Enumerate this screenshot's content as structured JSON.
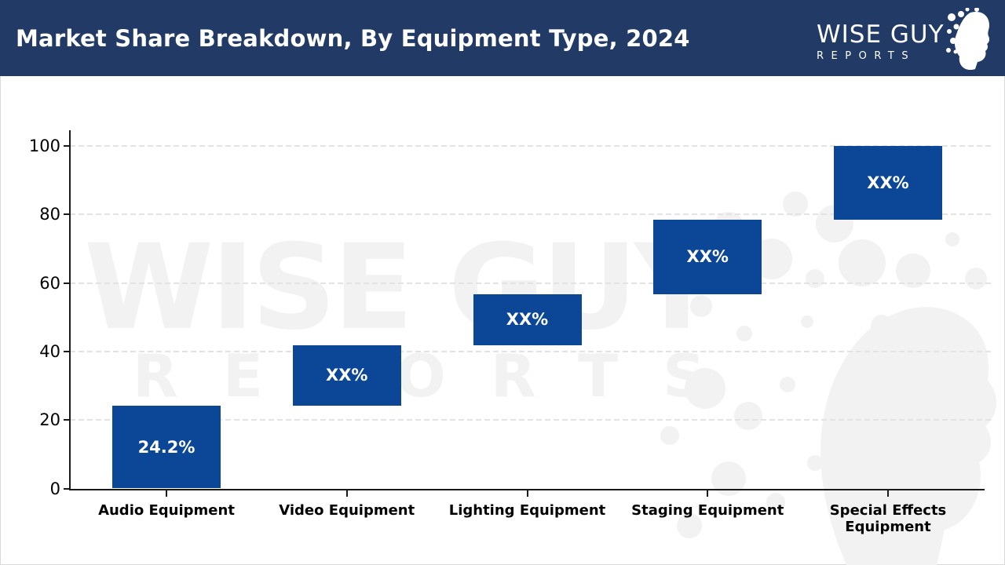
{
  "header": {
    "title": "Market Share Breakdown, By Equipment Type, 2024",
    "logo": {
      "name": "WISE GUY",
      "sub": "REPORTS"
    }
  },
  "watermark": {
    "name": "WISE GUY",
    "sub": "REPORTS"
  },
  "colors": {
    "header_bg": "#213A66",
    "bar": "#0B4796",
    "bar_label": "#FFFFFF",
    "axis": "#1A1A1A",
    "grid": "#E3E3E3",
    "tick_label": "#000000",
    "watermark": "#F2F2F2"
  },
  "chart_data": {
    "type": "bar",
    "subtype": "waterfall",
    "title": "Market Share Breakdown, By Equipment Type, 2024",
    "categories": [
      "Audio Equipment",
      "Video Equipment",
      "Lighting Equipment",
      "Staging Equipment",
      "Special Effects\nEquipment"
    ],
    "bars": [
      {
        "category": "Audio Equipment",
        "start": 0,
        "end": 24.2,
        "label": "24.2%"
      },
      {
        "category": "Video Equipment",
        "start": 24.2,
        "end": 41.8,
        "label": "XX%"
      },
      {
        "category": "Lighting Equipment",
        "start": 41.8,
        "end": 56.8,
        "label": "XX%"
      },
      {
        "category": "Staging Equipment",
        "start": 56.8,
        "end": 78.5,
        "label": "XX%"
      },
      {
        "category": "Special Effects\nEquipment",
        "start": 78.5,
        "end": 100,
        "label": "XX%"
      }
    ],
    "ylabel": "",
    "xlabel": "",
    "yticks": [
      0,
      20,
      40,
      60,
      80,
      100
    ],
    "ylim": [
      0,
      104.5
    ],
    "grid": "horizontal-dashed",
    "legend": "none"
  }
}
